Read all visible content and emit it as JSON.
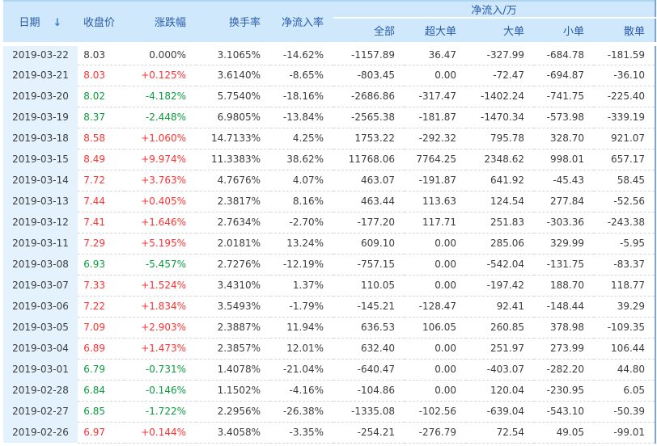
{
  "colors": {
    "up": "#ff3131",
    "down": "#0a9b3d",
    "flat": "#3c3c3c",
    "header_bg": "#cfe8fb",
    "header_text": "#2a5caa",
    "date_column_bg": "#e4f2fd"
  },
  "icons": {
    "sort_desc": "↓"
  },
  "table": {
    "headers": {
      "date": "日期",
      "close": "收盘价",
      "change": "涨跌幅",
      "turnover": "换手率",
      "inflow_rate": "净流入率",
      "net_inflow_group": "净流入/万",
      "all": "全部",
      "super_large": "超大单",
      "large": "大单",
      "small": "小单",
      "scattered": "散单"
    },
    "sort": {
      "column": "date",
      "direction": "descending"
    },
    "rows": [
      {
        "date": "2019-03-22",
        "close": "8.03",
        "change": "0.000%",
        "turnover": "3.1065%",
        "inflow_rate": "-14.62%",
        "all": "-1157.89",
        "super_large": "36.47",
        "large": "-327.99",
        "small": "-684.78",
        "scattered": "-181.59",
        "trend": "flat"
      },
      {
        "date": "2019-03-21",
        "close": "8.03",
        "change": "+0.125%",
        "turnover": "3.6140%",
        "inflow_rate": "-8.65%",
        "all": "-803.45",
        "super_large": "0.00",
        "large": "-72.47",
        "small": "-694.87",
        "scattered": "-36.10",
        "trend": "up"
      },
      {
        "date": "2019-03-20",
        "close": "8.02",
        "change": "-4.182%",
        "turnover": "5.7540%",
        "inflow_rate": "-18.16%",
        "all": "-2686.86",
        "super_large": "-317.47",
        "large": "-1402.24",
        "small": "-741.75",
        "scattered": "-225.40",
        "trend": "down"
      },
      {
        "date": "2019-03-19",
        "close": "8.37",
        "change": "-2.448%",
        "turnover": "6.9805%",
        "inflow_rate": "-13.84%",
        "all": "-2565.38",
        "super_large": "-181.87",
        "large": "-1470.34",
        "small": "-573.98",
        "scattered": "-339.19",
        "trend": "down"
      },
      {
        "date": "2019-03-18",
        "close": "8.58",
        "change": "+1.060%",
        "turnover": "14.7133%",
        "inflow_rate": "4.25%",
        "all": "1753.22",
        "super_large": "-292.32",
        "large": "795.78",
        "small": "328.70",
        "scattered": "921.07",
        "trend": "up"
      },
      {
        "date": "2019-03-15",
        "close": "8.49",
        "change": "+9.974%",
        "turnover": "11.3383%",
        "inflow_rate": "38.62%",
        "all": "11768.06",
        "super_large": "7764.25",
        "large": "2348.62",
        "small": "998.01",
        "scattered": "657.17",
        "trend": "up"
      },
      {
        "date": "2019-03-14",
        "close": "7.72",
        "change": "+3.763%",
        "turnover": "4.7676%",
        "inflow_rate": "4.07%",
        "all": "463.07",
        "super_large": "-191.87",
        "large": "641.92",
        "small": "-45.43",
        "scattered": "58.45",
        "trend": "up"
      },
      {
        "date": "2019-03-13",
        "close": "7.44",
        "change": "+0.405%",
        "turnover": "2.3817%",
        "inflow_rate": "8.16%",
        "all": "463.44",
        "super_large": "113.63",
        "large": "124.54",
        "small": "277.84",
        "scattered": "-52.56",
        "trend": "up"
      },
      {
        "date": "2019-03-12",
        "close": "7.41",
        "change": "+1.646%",
        "turnover": "2.7634%",
        "inflow_rate": "-2.70%",
        "all": "-177.20",
        "super_large": "117.71",
        "large": "251.83",
        "small": "-303.36",
        "scattered": "-243.38",
        "trend": "up"
      },
      {
        "date": "2019-03-11",
        "close": "7.29",
        "change": "+5.195%",
        "turnover": "2.0181%",
        "inflow_rate": "13.24%",
        "all": "609.10",
        "super_large": "0.00",
        "large": "285.06",
        "small": "329.99",
        "scattered": "-5.95",
        "trend": "up"
      },
      {
        "date": "2019-03-08",
        "close": "6.93",
        "change": "-5.457%",
        "turnover": "2.7276%",
        "inflow_rate": "-12.19%",
        "all": "-757.15",
        "super_large": "0.00",
        "large": "-542.04",
        "small": "-131.75",
        "scattered": "-83.37",
        "trend": "down"
      },
      {
        "date": "2019-03-07",
        "close": "7.33",
        "change": "+1.524%",
        "turnover": "3.4310%",
        "inflow_rate": "1.37%",
        "all": "110.05",
        "super_large": "0.00",
        "large": "-197.42",
        "small": "188.70",
        "scattered": "118.77",
        "trend": "up"
      },
      {
        "date": "2019-03-06",
        "close": "7.22",
        "change": "+1.834%",
        "turnover": "3.5493%",
        "inflow_rate": "-1.79%",
        "all": "-145.21",
        "super_large": "-128.47",
        "large": "92.41",
        "small": "-148.44",
        "scattered": "39.29",
        "trend": "up"
      },
      {
        "date": "2019-03-05",
        "close": "7.09",
        "change": "+2.903%",
        "turnover": "2.3887%",
        "inflow_rate": "11.94%",
        "all": "636.53",
        "super_large": "106.05",
        "large": "260.85",
        "small": "378.98",
        "scattered": "-109.35",
        "trend": "up"
      },
      {
        "date": "2019-03-04",
        "close": "6.89",
        "change": "+1.473%",
        "turnover": "2.3857%",
        "inflow_rate": "12.01%",
        "all": "632.40",
        "super_large": "0.00",
        "large": "251.97",
        "small": "273.99",
        "scattered": "106.44",
        "trend": "up"
      },
      {
        "date": "2019-03-01",
        "close": "6.79",
        "change": "-0.731%",
        "turnover": "1.4078%",
        "inflow_rate": "-21.04%",
        "all": "-640.47",
        "super_large": "0.00",
        "large": "-403.07",
        "small": "-282.20",
        "scattered": "44.80",
        "trend": "down"
      },
      {
        "date": "2019-02-28",
        "close": "6.84",
        "change": "-0.146%",
        "turnover": "1.1502%",
        "inflow_rate": "-4.16%",
        "all": "-104.86",
        "super_large": "0.00",
        "large": "120.04",
        "small": "-230.95",
        "scattered": "6.05",
        "trend": "down"
      },
      {
        "date": "2019-02-27",
        "close": "6.85",
        "change": "-1.722%",
        "turnover": "2.2956%",
        "inflow_rate": "-26.38%",
        "all": "-1335.08",
        "super_large": "-102.56",
        "large": "-639.04",
        "small": "-543.10",
        "scattered": "-50.39",
        "trend": "down"
      },
      {
        "date": "2019-02-26",
        "close": "6.97",
        "change": "+0.144%",
        "turnover": "3.4058%",
        "inflow_rate": "-3.35%",
        "all": "-254.21",
        "super_large": "-276.79",
        "large": "72.54",
        "small": "49.05",
        "scattered": "-99.01",
        "trend": "up"
      }
    ]
  }
}
